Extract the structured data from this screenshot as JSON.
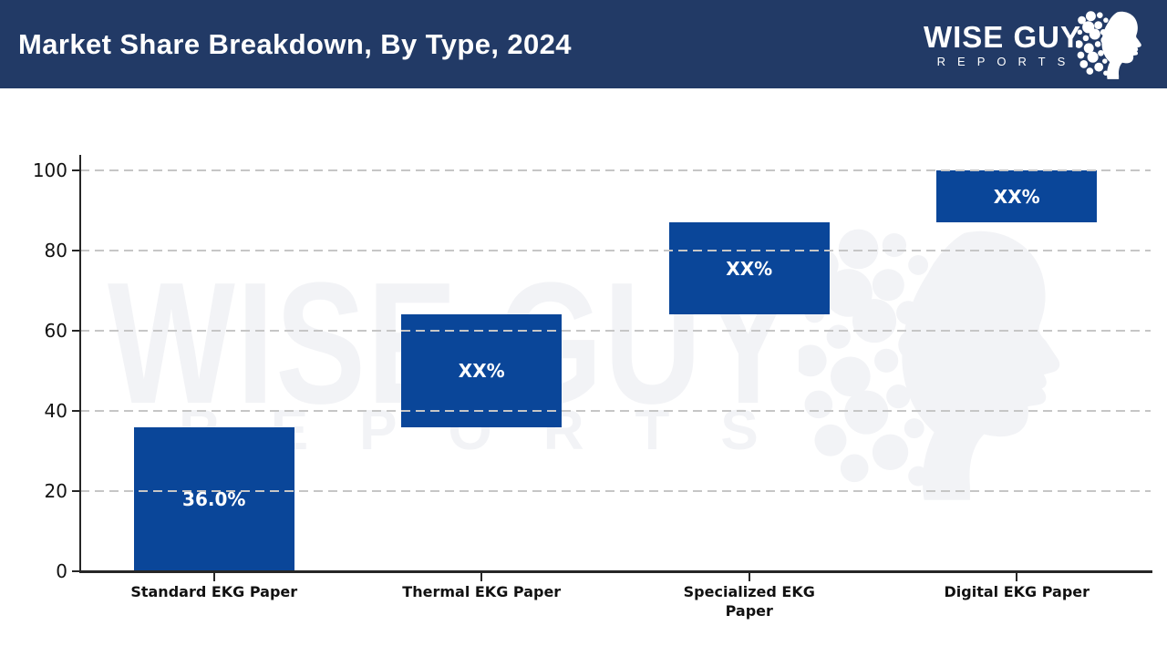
{
  "header": {
    "title": "Market Share Breakdown, By Type, 2024",
    "bg_color": "#223a66",
    "logo": {
      "line1": "WISE GUY",
      "line2": "REPORTS"
    }
  },
  "watermark": {
    "line1": "WISE GUY",
    "line2": "REPORTS"
  },
  "chart_data": {
    "type": "bar",
    "subtype": "waterfall",
    "title": "Market Share Breakdown, By Type, 2024",
    "categories": [
      "Standard EKG Paper",
      "Thermal EKG Paper",
      "Specialized EKG Paper",
      "Digital EKG Paper"
    ],
    "bars": [
      {
        "category": "Standard EKG Paper",
        "start": 0,
        "end": 36,
        "label": "36.0%"
      },
      {
        "category": "Thermal EKG Paper",
        "start": 36,
        "end": 64,
        "label": "XX%"
      },
      {
        "category": "Specialized EKG Paper",
        "start": 64,
        "end": 87,
        "label": "XX%"
      },
      {
        "category": "Digital EKG Paper",
        "start": 87,
        "end": 100,
        "label": "XX%"
      }
    ],
    "xlabel": "",
    "ylabel": "",
    "ylim": [
      0,
      100
    ],
    "yticks": [
      0,
      20,
      40,
      60,
      80,
      100
    ],
    "grid": "horizontal-dashed, drawn over bars",
    "legend": "none",
    "bar_color": "#0a4699",
    "bar_label_color": "#ffffff",
    "axis_color": "#262626",
    "gridline_color": "#c6c6c6"
  }
}
